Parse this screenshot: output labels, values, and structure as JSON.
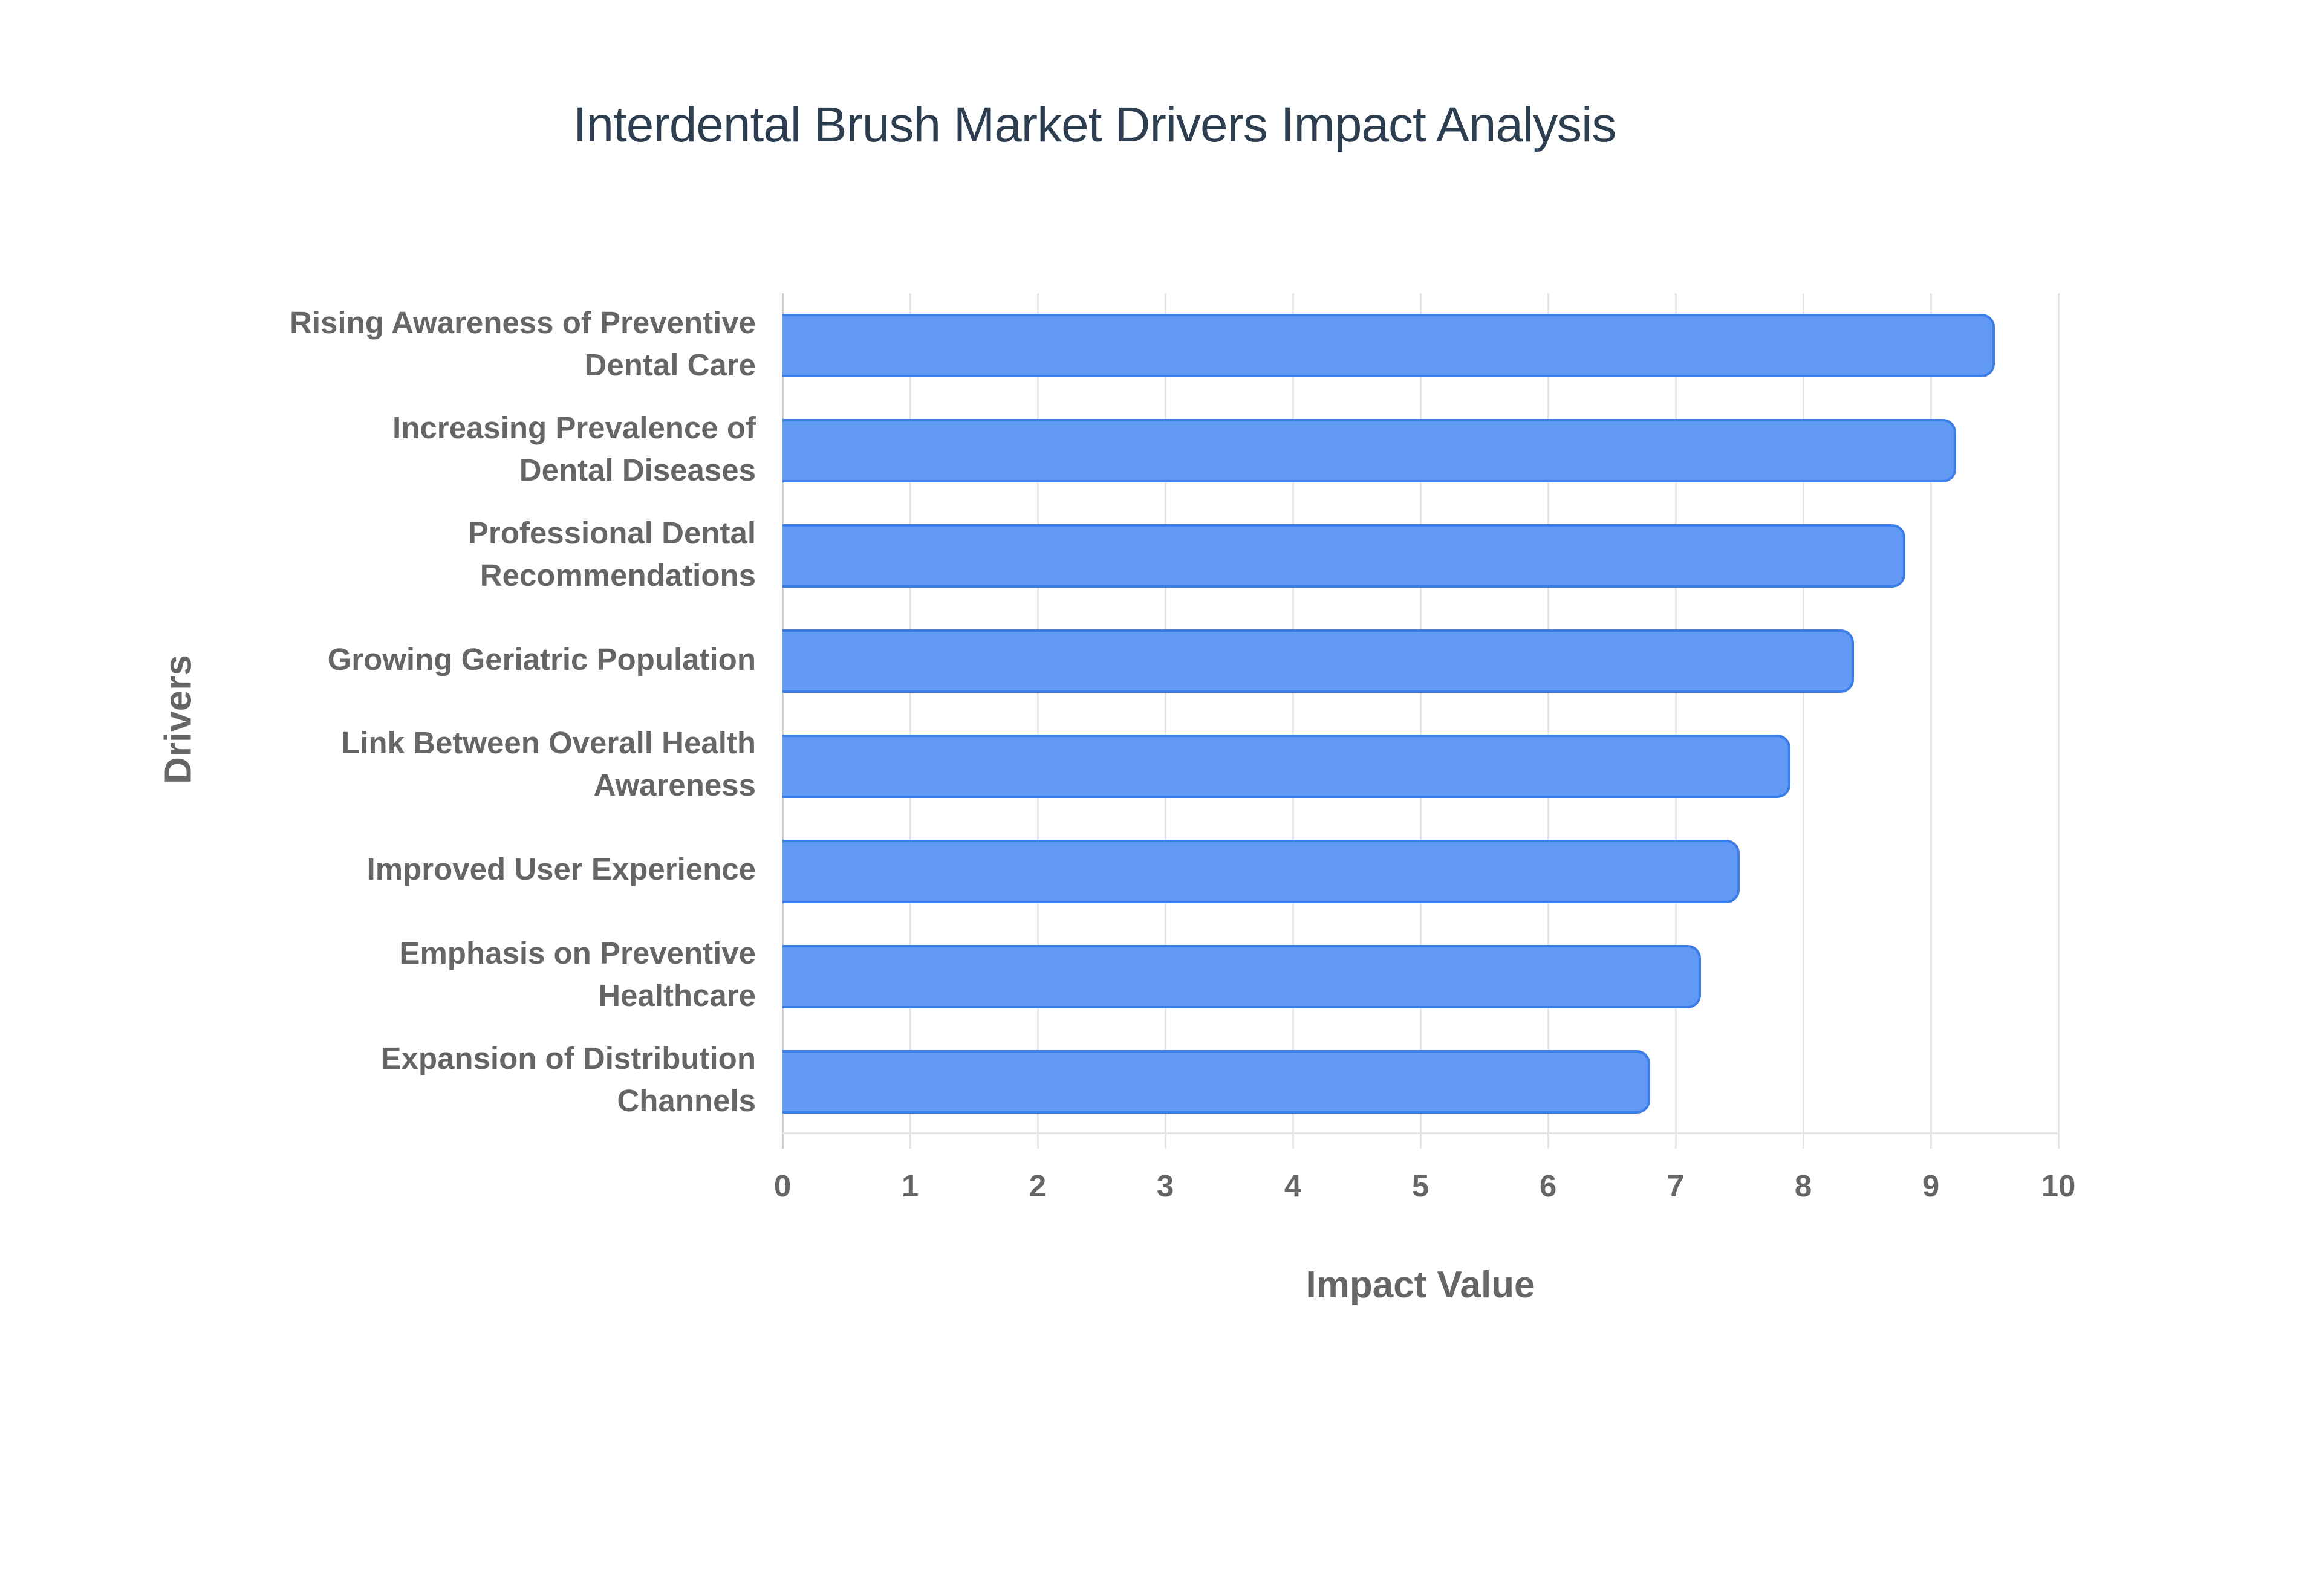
{
  "chart_data": {
    "type": "bar",
    "orientation": "horizontal",
    "title": "Interdental Brush Market Drivers Impact Analysis",
    "xlabel": "Impact Value",
    "ylabel": "Drivers",
    "xlim": [
      0,
      10
    ],
    "xticks": [
      "0",
      "1",
      "2",
      "3",
      "4",
      "5",
      "6",
      "7",
      "8",
      "9",
      "10"
    ],
    "grid": true,
    "legend": null,
    "bar_color": "#6199f4",
    "bar_border_color": "#3b7eea",
    "categories": [
      "Rising Awareness of Preventive Dental Care",
      "Increasing Prevalence of Dental Diseases",
      "Professional Dental Recommendations",
      "Growing Geriatric Population",
      "Link Between Overall Health Awareness",
      "Improved User Experience",
      "Emphasis on Preventive Healthcare",
      "Expansion of Distribution Channels"
    ],
    "category_lines": [
      [
        "Rising Awareness of Preventive",
        "Dental Care"
      ],
      [
        "Increasing Prevalence of",
        "Dental Diseases"
      ],
      [
        "Professional Dental",
        "Recommendations"
      ],
      [
        "Growing Geriatric Population"
      ],
      [
        "Link Between Overall Health",
        "Awareness"
      ],
      [
        "Improved User Experience"
      ],
      [
        "Emphasis on Preventive",
        "Healthcare"
      ],
      [
        "Expansion of Distribution",
        "Channels"
      ]
    ],
    "values": [
      9.5,
      9.2,
      8.8,
      8.4,
      7.9,
      7.5,
      7.2,
      6.8
    ]
  }
}
